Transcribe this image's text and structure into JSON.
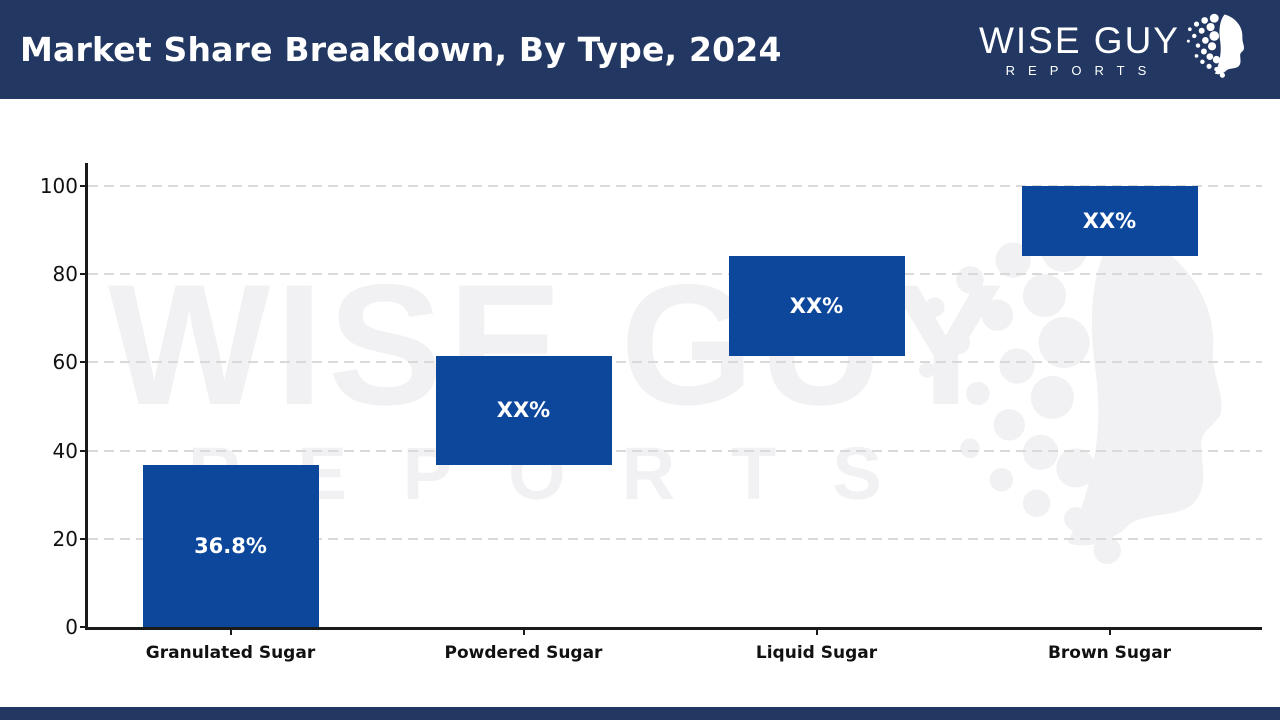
{
  "header": {
    "title": "Market Share Breakdown, By Type, 2024",
    "logo": {
      "line1": "WISE GUY",
      "line2": "REPORTS"
    }
  },
  "watermark": {
    "line1": "WISE GUY",
    "line2": "REPORTS"
  },
  "colors": {
    "header_navy": "#223862",
    "bar_blue": "#0c479c",
    "grid_gray": "#d9d9d9",
    "watermark_gray": "#f1f1f3",
    "axis_black": "#1a1a1a",
    "bar_label_white": "#ffffff"
  },
  "chart_data": {
    "type": "bar",
    "subtype": "stacked-waterfall-floating-bars",
    "title": "Market Share Breakdown, By Type, 2024",
    "categories": [
      "Granulated Sugar",
      "Powdered Sugar",
      "Liquid Sugar",
      "Brown Sugar"
    ],
    "segments": [
      {
        "category": "Granulated Sugar",
        "start": 0,
        "end": 36.8,
        "label": "36.8%"
      },
      {
        "category": "Powdered Sugar",
        "start": 36.8,
        "end": 61.5,
        "label": "XX%"
      },
      {
        "category": "Liquid Sugar",
        "start": 61.5,
        "end": 84.2,
        "label": "XX%"
      },
      {
        "category": "Brown Sugar",
        "start": 84.2,
        "end": 100,
        "label": "XX%"
      }
    ],
    "yticks": [
      0,
      20,
      40,
      60,
      80,
      100
    ],
    "ylim": [
      0,
      105
    ],
    "xlabel": "",
    "ylabel": "",
    "grid": "horizontal-dashed",
    "legend": "none"
  }
}
